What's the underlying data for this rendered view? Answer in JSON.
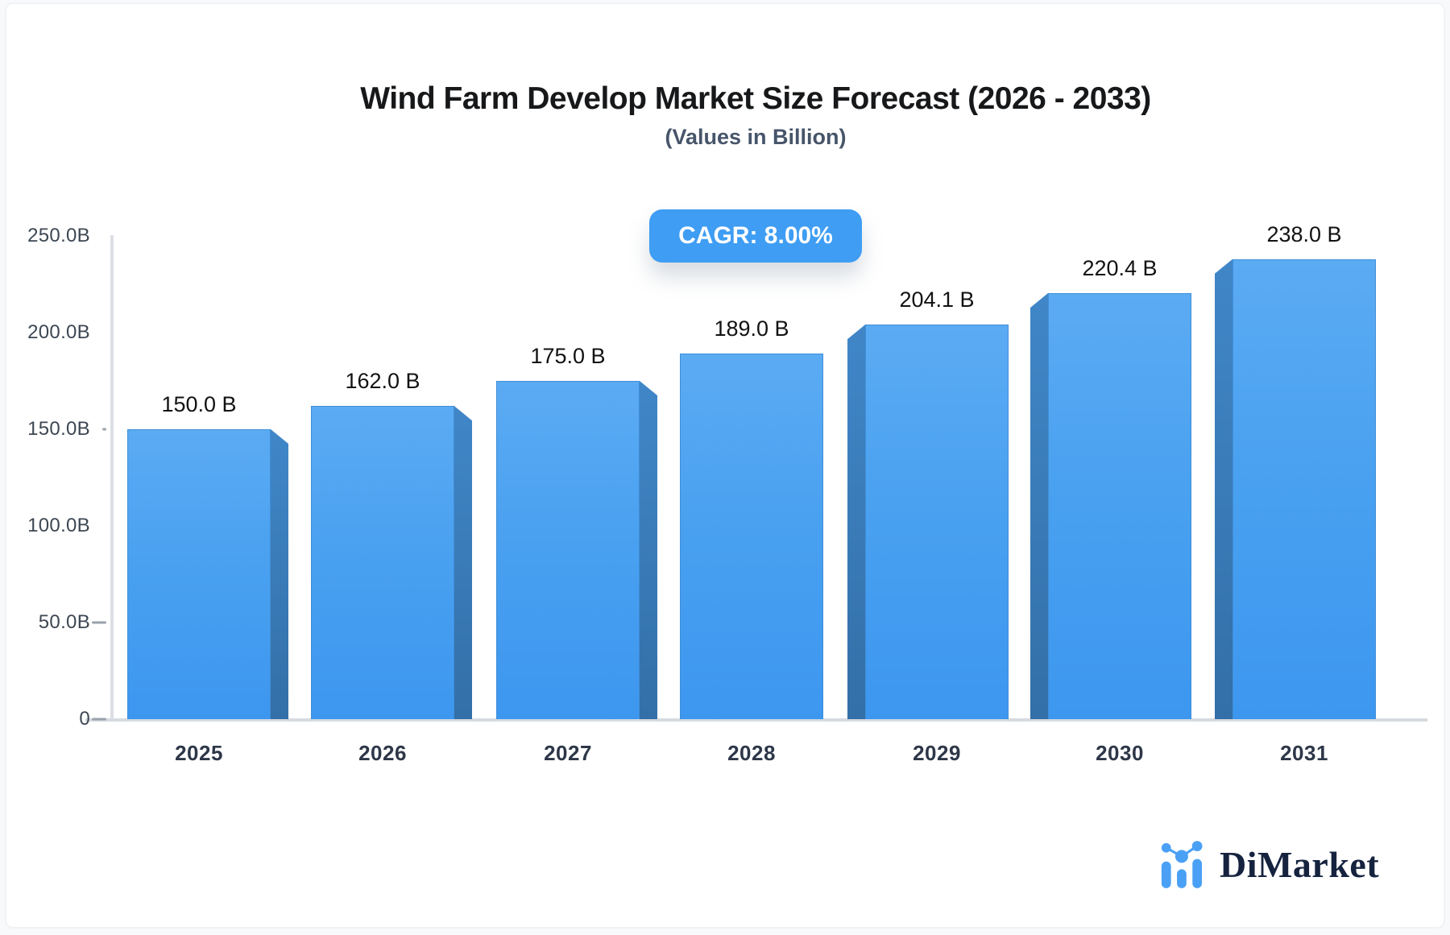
{
  "header": {
    "title": "Wind Farm Develop Market Size Forecast (2026 - 2033)",
    "subtitle": "(Values in Billion)",
    "cagr_badge": "CAGR: 8.00%"
  },
  "chart_data": {
    "type": "bar",
    "title": "Wind Farm Develop Market Size Forecast (2026 - 2033)",
    "subtitle": "(Values in Billion)",
    "unit": "Billion",
    "cagr": "8.00%",
    "categories": [
      "2025",
      "2026",
      "2027",
      "2028",
      "2029",
      "2030",
      "2031"
    ],
    "values": [
      150.0,
      162.0,
      175.0,
      189.0,
      204.1,
      220.4,
      238.0
    ],
    "bar_labels": [
      "150.0 B",
      "162.0 B",
      "175.0 B",
      "189.0 B",
      "204.1 B",
      "220.4 B",
      "238.0 B"
    ],
    "ylim": [
      0,
      250
    ],
    "y_ticks": [
      {
        "value": 250,
        "label": "250.0B"
      },
      {
        "value": 200,
        "label": "200.0B"
      },
      {
        "value": 150,
        "label": "150.0B"
      },
      {
        "value": 100,
        "label": "100.0B"
      },
      {
        "value": 50,
        "label": "50.0B"
      },
      {
        "value": 0,
        "label": "0"
      }
    ],
    "grid": false,
    "legend": false,
    "colors": {
      "bar_fill": "#4aa0f0",
      "bar_fill_top": "#5babf3",
      "bar_fill_bottom": "#3d97ef",
      "bar_side_face": "#3779b6",
      "axis_line": "#d9dde2",
      "value_label": "#121212",
      "axis_label": "#2d3748",
      "badge_background": "#3f9df3",
      "badge_text": "#ffffff"
    }
  },
  "footer": {
    "brand": "DiMarket",
    "logo_icon": "mini-bar-chart-icon",
    "brand_color": "#16233f",
    "logo_blue": "#4aa0f5"
  }
}
